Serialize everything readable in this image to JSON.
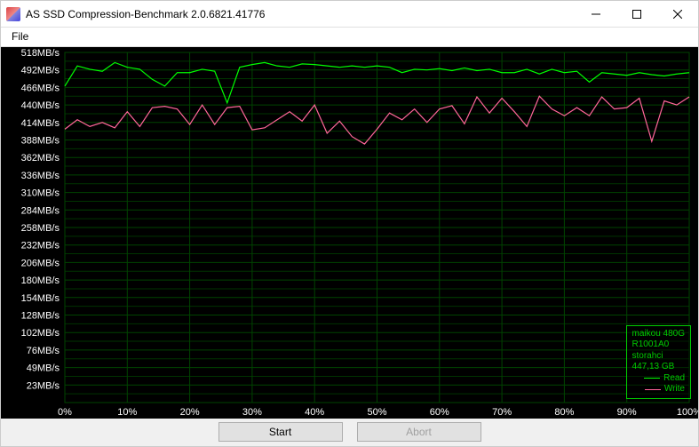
{
  "window": {
    "title": "AS SSD Compression-Benchmark 2.0.6821.41776"
  },
  "menu": {
    "file": "File"
  },
  "chart": {
    "type": "line",
    "y_labels": [
      "23MB/s",
      "49MB/s",
      "76MB/s",
      "102MB/s",
      "128MB/s",
      "154MB/s",
      "180MB/s",
      "206MB/s",
      "232MB/s",
      "258MB/s",
      "284MB/s",
      "310MB/s",
      "336MB/s",
      "362MB/s",
      "388MB/s",
      "414MB/s",
      "440MB/s",
      "466MB/s",
      "492MB/s",
      "518MB/s"
    ],
    "y_min": 0,
    "y_max": 520,
    "x_labels": [
      "0%",
      "10%",
      "20%",
      "30%",
      "40%",
      "50%",
      "60%",
      "70%",
      "80%",
      "90%",
      "100%"
    ],
    "x_min": 0,
    "x_max": 100,
    "background_color": "#000000",
    "grid_color": "#004400",
    "text_color": "#ffffff",
    "read": {
      "color": "#00ff00",
      "points": [
        [
          0,
          470
        ],
        [
          2,
          500
        ],
        [
          4,
          495
        ],
        [
          6,
          492
        ],
        [
          8,
          505
        ],
        [
          10,
          498
        ],
        [
          12,
          495
        ],
        [
          14,
          480
        ],
        [
          16,
          470
        ],
        [
          18,
          490
        ],
        [
          20,
          490
        ],
        [
          22,
          495
        ],
        [
          24,
          492
        ],
        [
          26,
          445
        ],
        [
          28,
          498
        ],
        [
          30,
          502
        ],
        [
          32,
          505
        ],
        [
          34,
          500
        ],
        [
          36,
          498
        ],
        [
          38,
          503
        ],
        [
          40,
          502
        ],
        [
          42,
          500
        ],
        [
          44,
          498
        ],
        [
          46,
          500
        ],
        [
          48,
          498
        ],
        [
          50,
          500
        ],
        [
          52,
          498
        ],
        [
          54,
          490
        ],
        [
          56,
          495
        ],
        [
          58,
          494
        ],
        [
          60,
          496
        ],
        [
          62,
          493
        ],
        [
          64,
          497
        ],
        [
          66,
          493
        ],
        [
          68,
          495
        ],
        [
          70,
          490
        ],
        [
          72,
          490
        ],
        [
          74,
          495
        ],
        [
          76,
          488
        ],
        [
          78,
          495
        ],
        [
          80,
          490
        ],
        [
          82,
          492
        ],
        [
          84,
          476
        ],
        [
          86,
          490
        ],
        [
          88,
          488
        ],
        [
          90,
          486
        ],
        [
          92,
          490
        ],
        [
          94,
          487
        ],
        [
          96,
          485
        ],
        [
          98,
          488
        ],
        [
          100,
          490
        ]
      ]
    },
    "write": {
      "color": "#ff6699",
      "points": [
        [
          0,
          406
        ],
        [
          2,
          420
        ],
        [
          4,
          410
        ],
        [
          6,
          416
        ],
        [
          8,
          408
        ],
        [
          10,
          432
        ],
        [
          12,
          410
        ],
        [
          14,
          438
        ],
        [
          16,
          440
        ],
        [
          18,
          436
        ],
        [
          20,
          413
        ],
        [
          22,
          442
        ],
        [
          24,
          413
        ],
        [
          26,
          438
        ],
        [
          28,
          440
        ],
        [
          30,
          405
        ],
        [
          32,
          408
        ],
        [
          34,
          420
        ],
        [
          36,
          432
        ],
        [
          38,
          418
        ],
        [
          40,
          442
        ],
        [
          42,
          400
        ],
        [
          44,
          418
        ],
        [
          46,
          395
        ],
        [
          48,
          384
        ],
        [
          50,
          406
        ],
        [
          52,
          430
        ],
        [
          54,
          420
        ],
        [
          56,
          436
        ],
        [
          58,
          416
        ],
        [
          60,
          436
        ],
        [
          62,
          441
        ],
        [
          64,
          414
        ],
        [
          66,
          454
        ],
        [
          68,
          430
        ],
        [
          70,
          452
        ],
        [
          72,
          432
        ],
        [
          74,
          410
        ],
        [
          76,
          455
        ],
        [
          78,
          436
        ],
        [
          80,
          426
        ],
        [
          82,
          438
        ],
        [
          84,
          426
        ],
        [
          86,
          454
        ],
        [
          88,
          436
        ],
        [
          90,
          438
        ],
        [
          92,
          452
        ],
        [
          94,
          388
        ],
        [
          96,
          448
        ],
        [
          98,
          442
        ],
        [
          100,
          454
        ]
      ]
    }
  },
  "info": {
    "device": "maikou  480G",
    "firmware": "R1001A0",
    "driver": "storahci",
    "capacity": "447,13 GB",
    "read_label": "Read",
    "write_label": "Write"
  },
  "buttons": {
    "start": "Start",
    "abort": "Abort"
  }
}
